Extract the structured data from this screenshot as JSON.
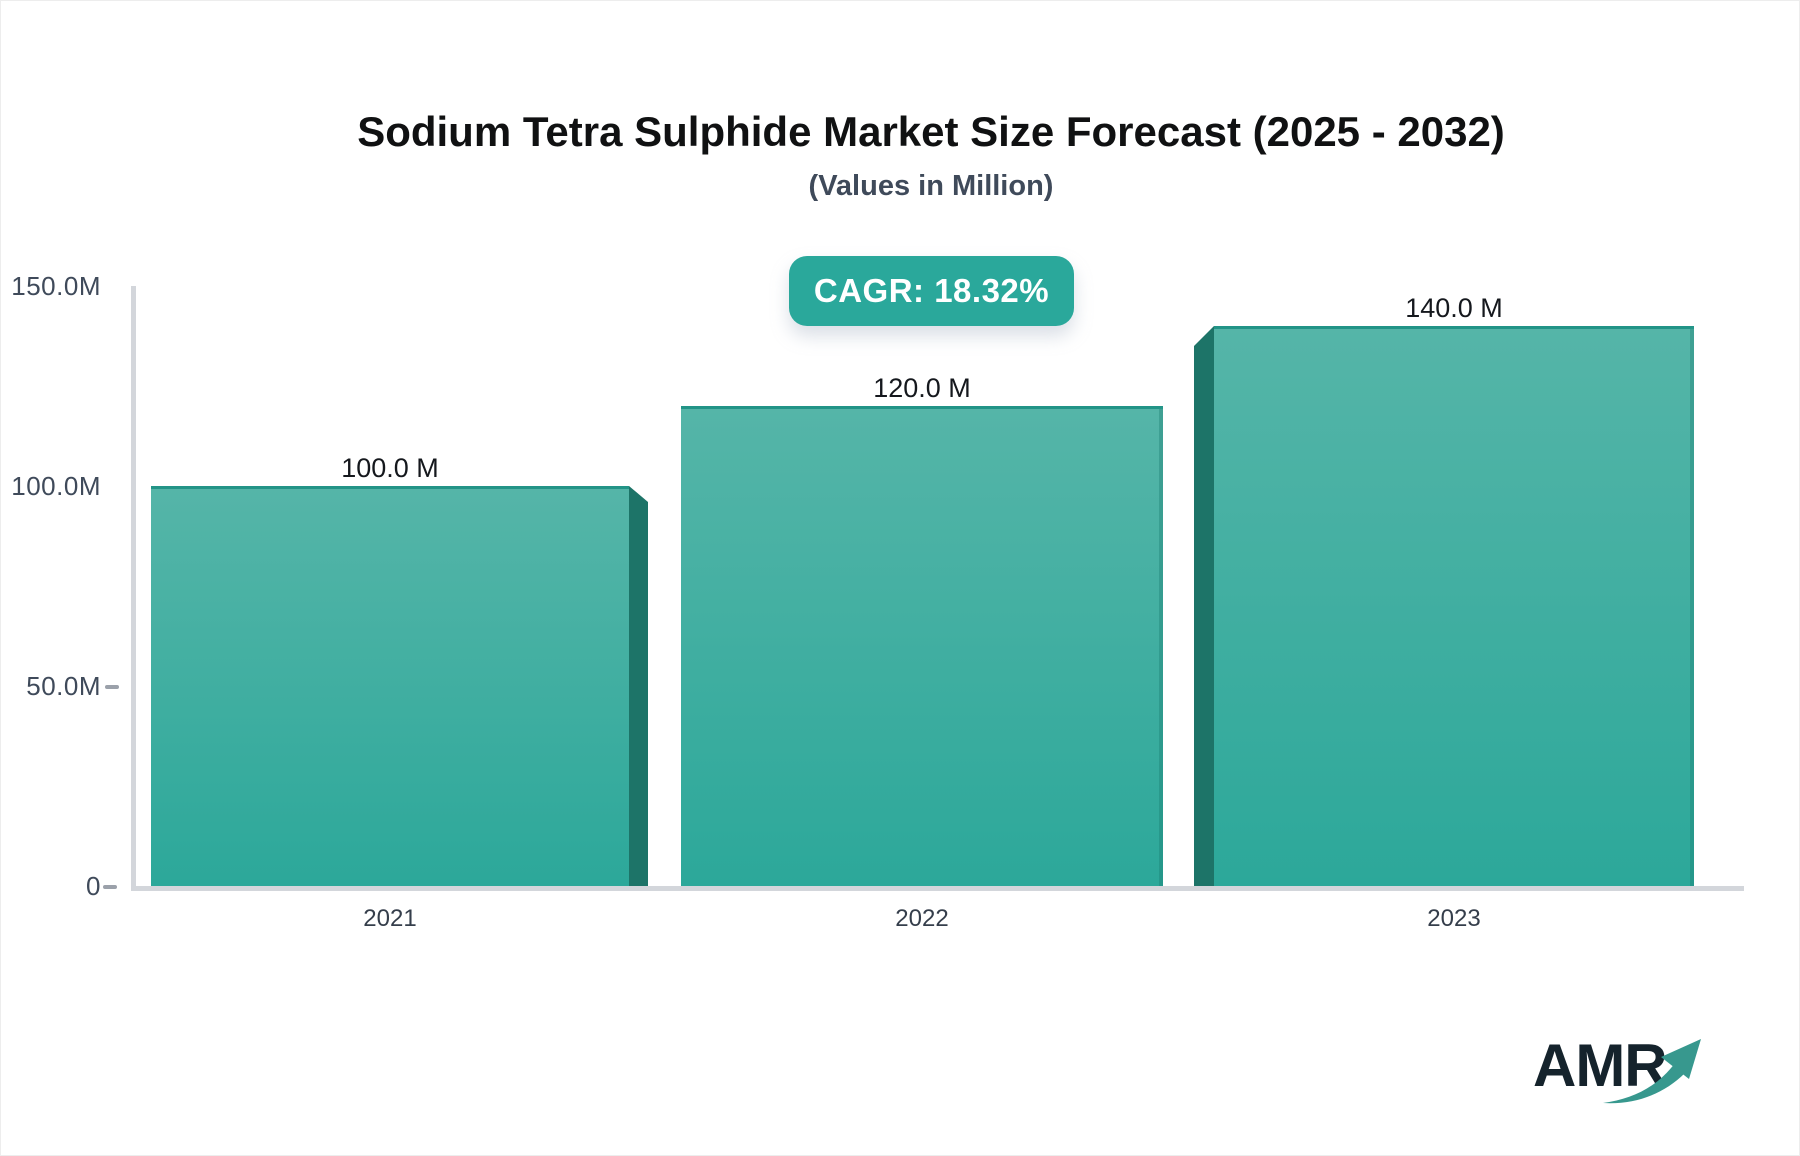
{
  "header": {
    "title": "Sodium Tetra Sulphide Market Size Forecast (2025 - 2032)",
    "subtitle": "(Values in Million)",
    "cagr_label": "CAGR: 18.32%"
  },
  "chart_data": {
    "type": "bar",
    "title": "Sodium Tetra Sulphide Market Size Forecast (2025 - 2032)",
    "subtitle": "(Values in Million)",
    "annotation": "CAGR: 18.32%",
    "categories": [
      "2021",
      "2022",
      "2023"
    ],
    "values": [
      100.0,
      120.0,
      140.0
    ],
    "value_labels": [
      "100.0 M",
      "120.0 M",
      "140.0 M"
    ],
    "unit": "Million",
    "y_ticks": [
      "150.0M",
      "100.0M",
      "50.0M",
      "0"
    ],
    "ylim": [
      0,
      150
    ],
    "grid": false,
    "legend": false,
    "bar_color_top": "#55b5a8",
    "bar_color_bottom": "#2ca89a",
    "bar_side_color": "#1d7468"
  },
  "colors": {
    "badge_bg": "#2aa89b",
    "axis": "#d3d6db",
    "text_dark": "#101112"
  },
  "logo": {
    "text": "AMR",
    "arrow_icon": "growth-arrow",
    "text_color": "#15232c",
    "arrow_color": "#37988e"
  }
}
